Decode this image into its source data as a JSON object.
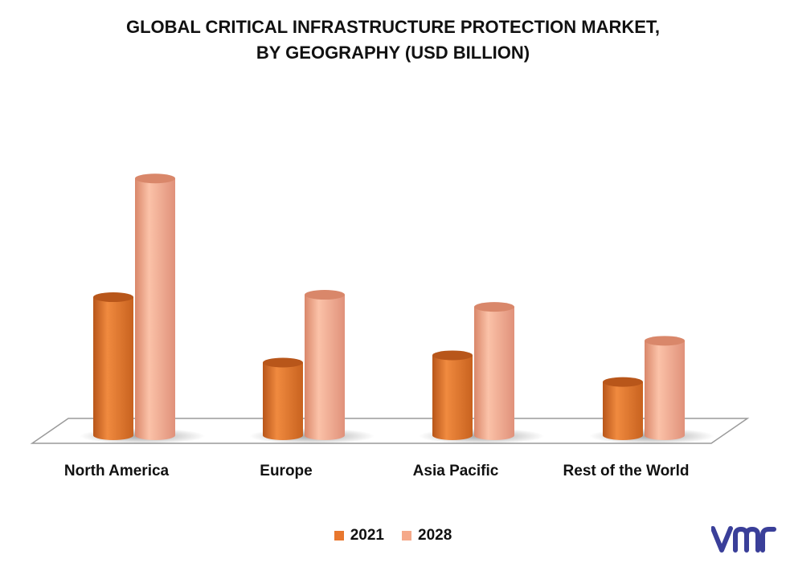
{
  "title_line1": "GLOBAL CRITICAL INFRASTRUCTURE PROTECTION MARKET,",
  "title_line2": "BY GEOGRAPHY (USD BILLION)",
  "colors": {
    "series_2021": "#E8772E",
    "series_2021_dark": "#B8561A",
    "series_2028": "#F5A98A",
    "series_2028_dark": "#D9876A",
    "logo": "#3A3F99"
  },
  "logo_name": "vmr-logo",
  "chart_data": {
    "type": "bar",
    "style": "3d-cylinder",
    "title": "GLOBAL CRITICAL INFRASTRUCTURE PROTECTION MARKET, BY GEOGRAPHY (USD BILLION)",
    "categories": [
      "North America",
      "Europe",
      "Asia Pacific",
      "Rest of the World"
    ],
    "series": [
      {
        "name": "2021",
        "values": [
          57,
          30,
          33,
          22
        ]
      },
      {
        "name": "2028",
        "values": [
          106,
          58,
          53,
          39
        ]
      }
    ],
    "ylim": [
      0,
      120
    ],
    "grid": false,
    "legend_position": "bottom",
    "xlabel": "",
    "ylabel": ""
  }
}
